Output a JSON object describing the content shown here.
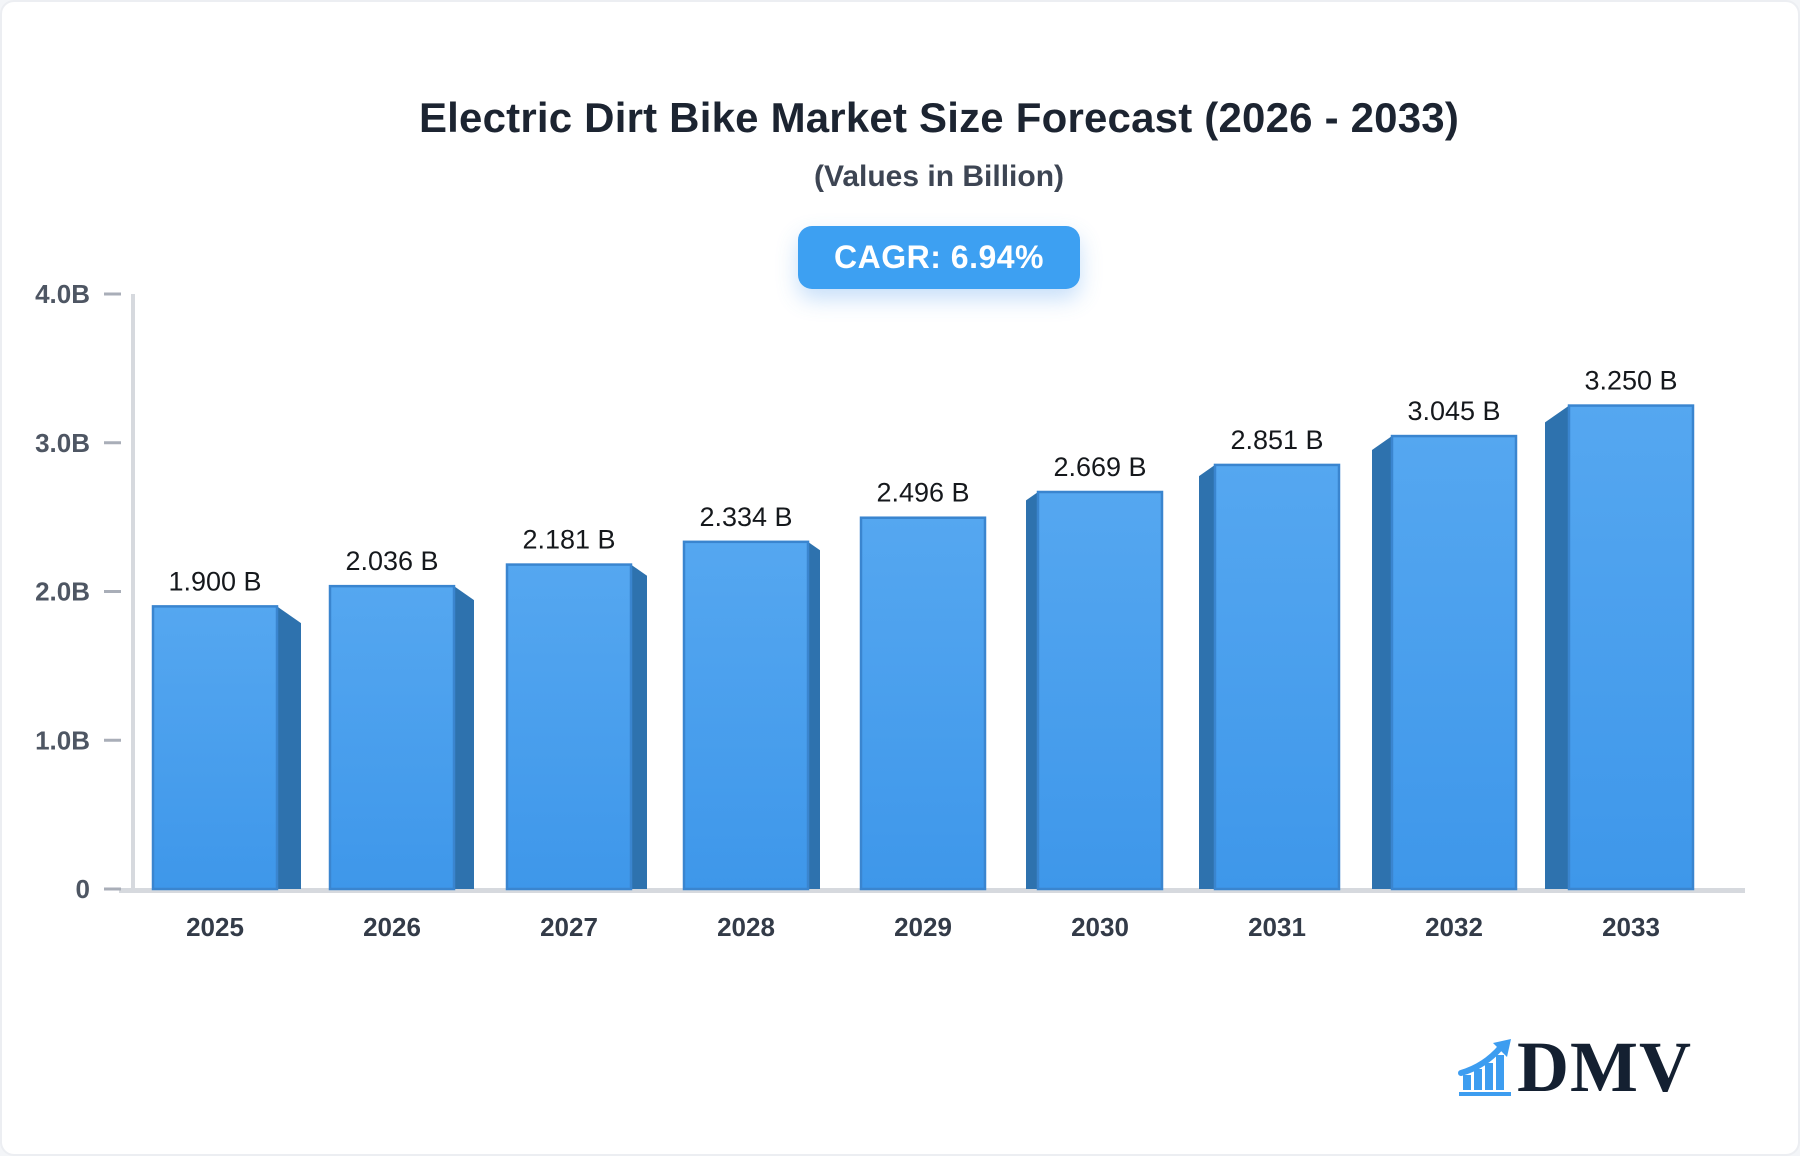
{
  "page": {
    "background": "#f3f5f8",
    "card_background": "#ffffff"
  },
  "header": {
    "title": "Electric Dirt Bike Market Size Forecast (2026 - 2033)",
    "subtitle": "(Values in Billion)"
  },
  "cagr_badge": {
    "label": "CAGR: 6.94%",
    "color": "#3da0f2"
  },
  "chart_data": {
    "type": "bar",
    "title": "Electric Dirt Bike Market Size Forecast (2026 - 2033)",
    "subtitle": "(Values in Billion)",
    "categories": [
      "2025",
      "2026",
      "2027",
      "2028",
      "2029",
      "2030",
      "2031",
      "2032",
      "2033"
    ],
    "values": [
      1.9,
      2.036,
      2.181,
      2.334,
      2.496,
      2.669,
      2.851,
      3.045,
      3.25
    ],
    "value_labels": [
      "1.900 B",
      "2.036 B",
      "2.181 B",
      "2.334 B",
      "2.496 B",
      "2.669 B",
      "2.851 B",
      "3.045 B",
      "3.250 B"
    ],
    "xlabel": "",
    "ylabel": "",
    "ylim": [
      0,
      4.0
    ],
    "yticks": [
      {
        "value": 0,
        "label": "0"
      },
      {
        "value": 1.0,
        "label": "1.0B"
      },
      {
        "value": 2.0,
        "label": "2.0B"
      },
      {
        "value": 3.0,
        "label": "3.0B"
      },
      {
        "value": 4.0,
        "label": "4.0B"
      }
    ],
    "grid": false,
    "legend": "none",
    "cagr": "6.94%",
    "bar_style": {
      "fill_top": "#55a7f0",
      "fill_bottom": "#3e97ea",
      "stroke": "#3a85cf",
      "side_fill": "#2e72ae"
    }
  },
  "axes": {
    "line_color": "#d6d9de",
    "tick_color": "#a9aeb8",
    "x_label_color": "#333b48",
    "y_label_color": "#4e5663"
  },
  "logo": {
    "text": "DMV",
    "icon": "bar-chart-arrow-icon",
    "icon_color": "#3d9df0",
    "text_color": "#142031"
  }
}
